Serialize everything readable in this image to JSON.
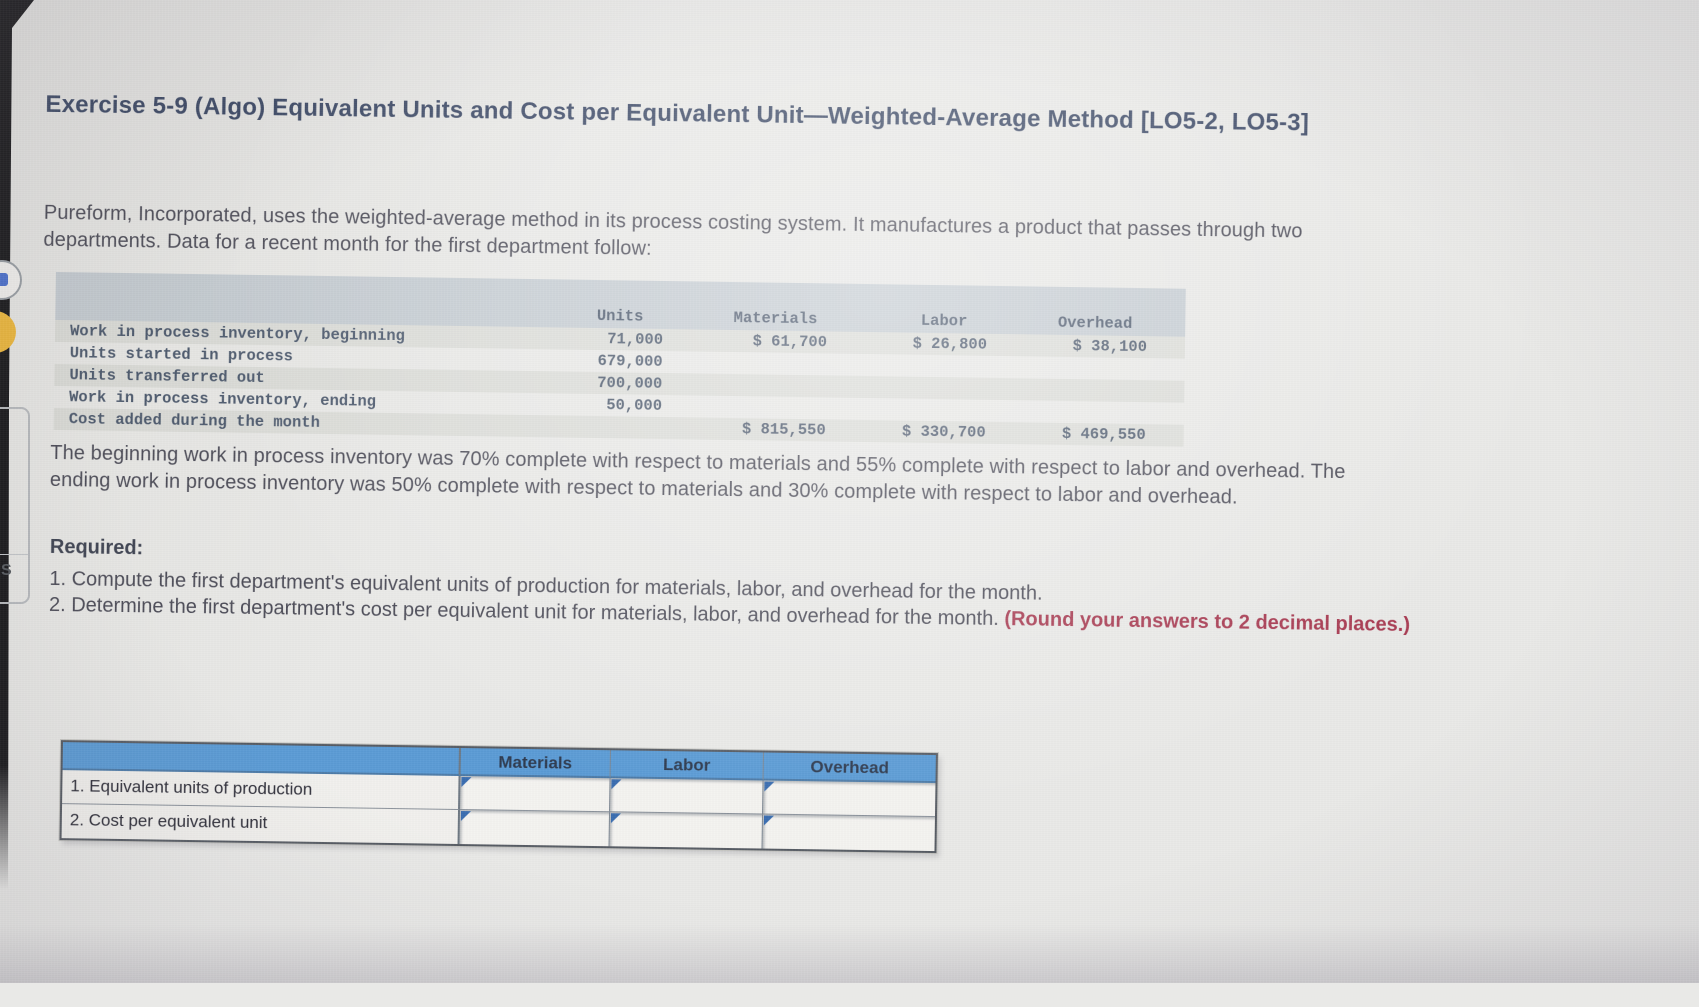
{
  "page": {
    "title": "Exercise 5-9 (Algo) Equivalent Units and Cost per Equivalent Unit—Weighted-Average Method [LO5-2, LO5-3]",
    "intro": "Pureform, Incorporated, uses the weighted-average method in its process costing system. It manufactures a product that passes through two departments. Data for a recent month for the first department follow:",
    "completion_note": "The beginning work in process inventory was 70% complete with respect to materials and 55% complete with respect to labor and overhead. The ending work in process inventory was 50% complete with respect to materials and 30% complete with respect to labor and overhead.",
    "required_label": "Required:",
    "required_items": [
      {
        "text": "1. Compute the first department's equivalent units of production for materials, labor, and overhead for the month.",
        "emphasis": ""
      },
      {
        "text": "2. Determine the first department's cost per equivalent unit for materials, labor, and overhead for the month. ",
        "emphasis": "(Round your answers to 2 decimal places.)"
      }
    ]
  },
  "data_table": {
    "headers": [
      "Units",
      "Materials",
      "Labor",
      "Overhead"
    ],
    "rows": [
      {
        "label": "Work in process inventory, beginning",
        "units": "71,000",
        "materials": "$ 61,700",
        "labor": "$ 26,800",
        "overhead": "$ 38,100"
      },
      {
        "label": "Units started in process",
        "units": "679,000",
        "materials": "",
        "labor": "",
        "overhead": ""
      },
      {
        "label": "Units transferred out",
        "units": "700,000",
        "materials": "",
        "labor": "",
        "overhead": ""
      },
      {
        "label": "Work in process inventory, ending",
        "units": "50,000",
        "materials": "",
        "labor": "",
        "overhead": ""
      },
      {
        "label": "Cost added during the month",
        "units": "",
        "materials": "$ 815,550",
        "labor": "$ 330,700",
        "overhead": "$ 469,550"
      }
    ]
  },
  "answer_table": {
    "headers": [
      "",
      "Materials",
      "Labor",
      "Overhead"
    ],
    "rows": [
      {
        "label": "1. Equivalent units of production",
        "values": [
          "",
          "",
          ""
        ]
      },
      {
        "label": "2. Cost per equivalent unit",
        "values": [
          "",
          "",
          ""
        ]
      }
    ]
  },
  "edge": {
    "panel_letter": "S"
  },
  "colors": {
    "answer_header_blue": "#5b9bd5",
    "required_note_red": "#a83b52",
    "notification_yellow": "#efb93c",
    "table_header_gray": "#c6cdd3",
    "title_navy": "#3c4966"
  }
}
